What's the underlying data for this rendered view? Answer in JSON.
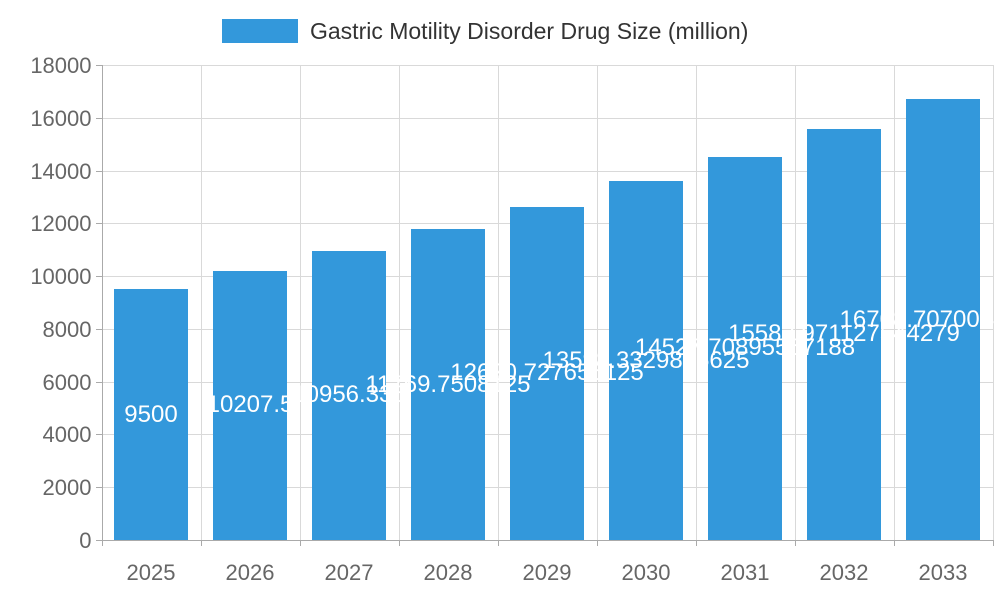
{
  "legend": {
    "label": "Gastric Motility Disorder Drug Size (million)"
  },
  "colors": {
    "bar": "#3398DB",
    "bar_label": "#ffffff",
    "axis_label": "#666666",
    "legend_text": "#333333",
    "grid_line": "#d9d9d9",
    "axis_line": "#aaaaaa"
  },
  "chart_data": {
    "type": "bar",
    "title": "Gastric Motility Disorder Drug Size (million)",
    "categories": [
      "2025",
      "2026",
      "2027",
      "2028",
      "2029",
      "2030",
      "2031",
      "2032",
      "2033"
    ],
    "values": [
      9500,
      10207.5,
      10956.335,
      11769.7508125,
      12620.727655125,
      13598.3329845625,
      14527.70895557188,
      15583.971127544279,
      16708.7070024279
    ],
    "value_labels": [
      "9500",
      "10207.5",
      "10956.335",
      "11769.7508125",
      "12620.727655125",
      "13598.3329845625",
      "14527.70895557188",
      "15583.971127544279",
      "16708.7070024279"
    ],
    "xlabel": "",
    "ylabel": "",
    "ylim": [
      0,
      18000
    ],
    "y_ticks": [
      "0",
      "2000",
      "4000",
      "6000",
      "8000",
      "10000",
      "12000",
      "14000",
      "16000",
      "18000"
    ],
    "grid": true,
    "legend_position": "top"
  }
}
